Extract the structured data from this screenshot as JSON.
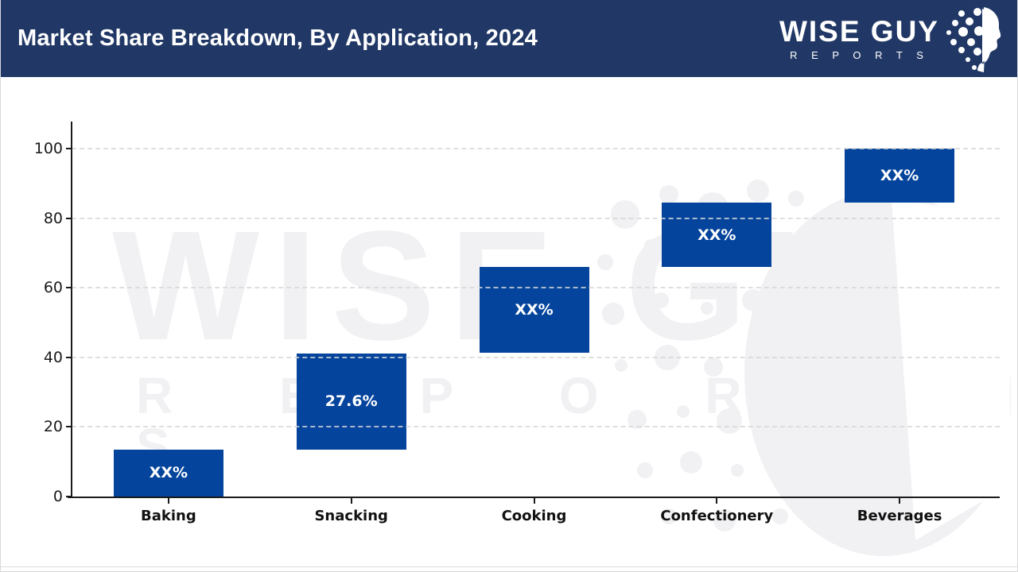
{
  "header": {
    "title": "Market Share Breakdown, By Application, 2024",
    "logo": {
      "name": "WISE GUY",
      "tagline": "R E P O R T S"
    }
  },
  "watermark": {
    "line1": "WISE GUY",
    "line2": "R E P O R T S"
  },
  "colors": {
    "header_bg": "#213866",
    "bar": "#04449c",
    "grid": "#d8d8d8",
    "axis": "#1a1a1a",
    "bar_label_text": "#ffffff",
    "watermark": "#f1f1f4"
  },
  "chart_data": {
    "type": "bar",
    "subtype": "waterfall",
    "title": "Market Share Breakdown, By Application, 2024",
    "categories": [
      "Baking",
      "Snacking",
      "Cooking",
      "Confectionery",
      "Beverages"
    ],
    "segments": [
      {
        "category": "Baking",
        "start": 0,
        "end": 13.5,
        "label": "XX%"
      },
      {
        "category": "Snacking",
        "start": 13.5,
        "end": 41.1,
        "label": "27.6%"
      },
      {
        "category": "Cooking",
        "start": 41.4,
        "end": 66.0,
        "label": "XX%"
      },
      {
        "category": "Confectionery",
        "start": 66.0,
        "end": 84.4,
        "label": "XX%"
      },
      {
        "category": "Beverages",
        "start": 84.4,
        "end": 100,
        "label": "XX%"
      }
    ],
    "xlabel": "",
    "ylabel": "",
    "ylim": [
      0,
      100
    ],
    "yticks": [
      0,
      20,
      40,
      60,
      80,
      100
    ],
    "grid": {
      "horizontal": true,
      "style": "dashed"
    },
    "legend": "none",
    "bar_color": "#04449c"
  }
}
